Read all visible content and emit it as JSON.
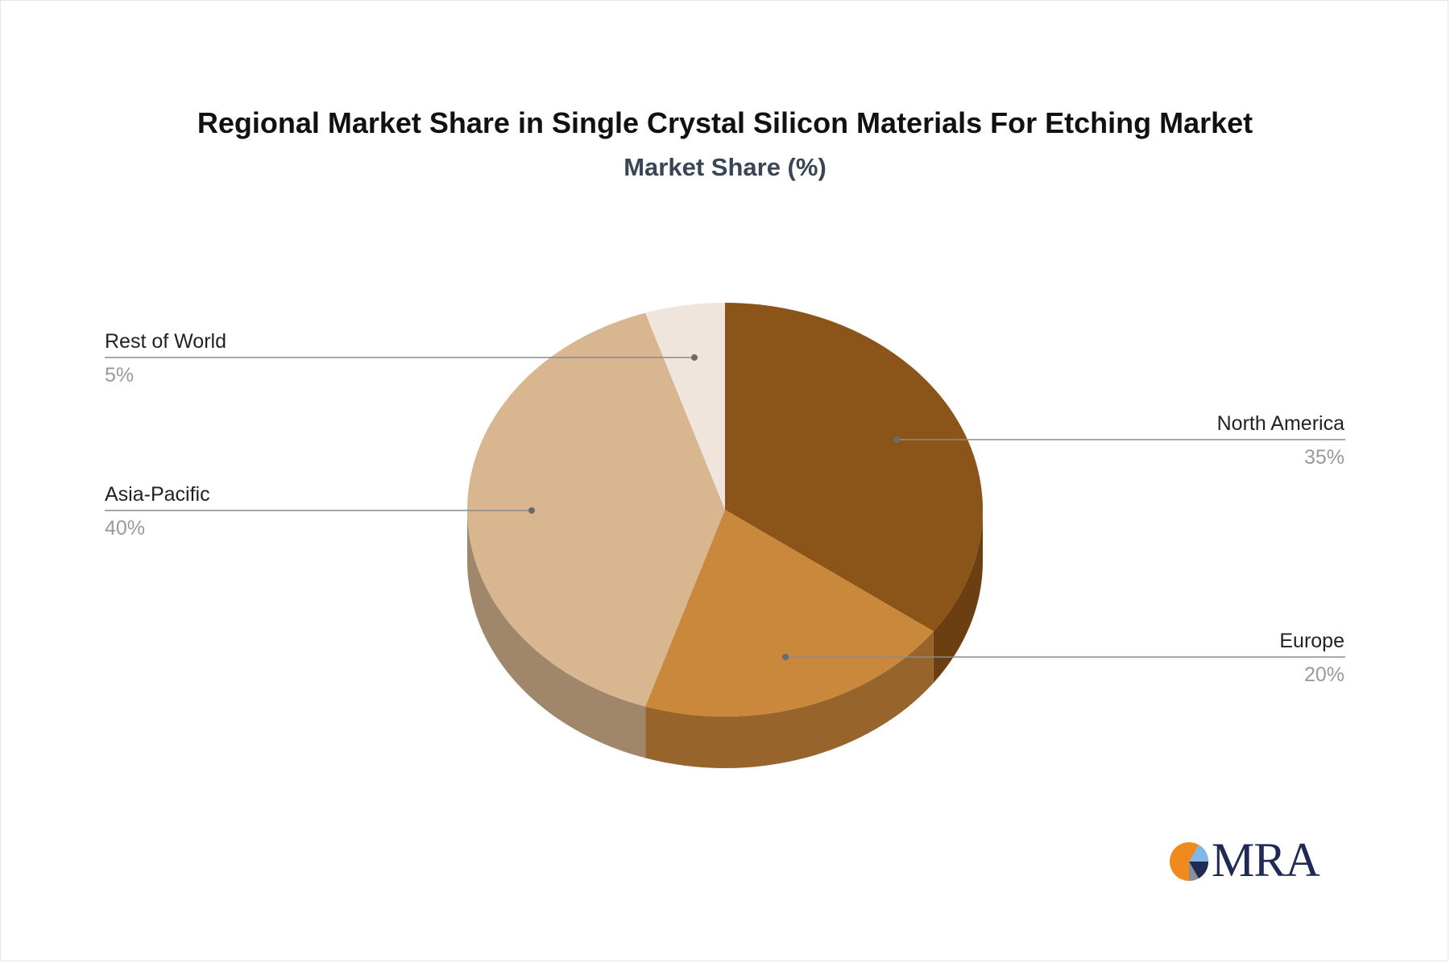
{
  "title": "Regional Market Share in Single Crystal Silicon Materials For Etching Market",
  "subtitle": "Market Share (%)",
  "chart_data": {
    "type": "pie",
    "style": "3d",
    "start_angle_deg": 90,
    "direction": "clockwise",
    "slices": [
      {
        "name": "North America",
        "value": 35,
        "label": "35%",
        "color": "#8b5418",
        "side_color": "#6b3f12"
      },
      {
        "name": "Europe",
        "value": 20,
        "label": "20%",
        "color": "#c9883b",
        "side_color": "#97652b"
      },
      {
        "name": "Asia-Pacific",
        "value": 40,
        "label": "40%",
        "color": "#d7b690",
        "side_color": "#a0876c"
      },
      {
        "name": "Rest of World",
        "value": 5,
        "label": "5%",
        "color": "#efe5dc",
        "side_color": "#bfb3a8"
      }
    ]
  },
  "logo": {
    "text": "MRA",
    "colors": [
      "#f0891e",
      "#1f2a56",
      "#7fb7e6"
    ]
  }
}
